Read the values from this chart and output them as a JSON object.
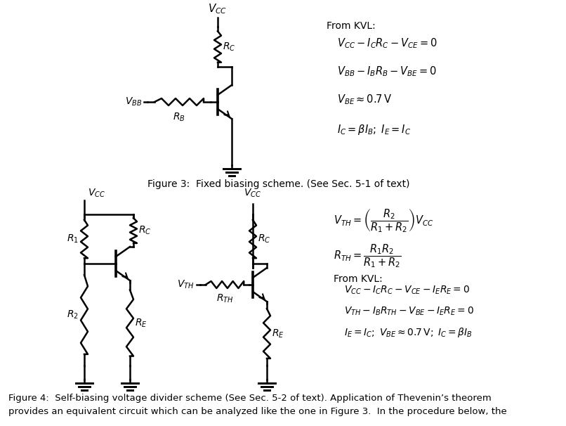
{
  "bg_color": "#ffffff",
  "text_color": "#000000",
  "fig_width": 8.06,
  "fig_height": 6.06,
  "fig3_caption": "Figure 3:  Fixed biasing scheme. (See Sec. 5-1 of text)",
  "fig4_caption": "Figure 4:  Self-biasing voltage divider scheme (See Sec. 5-2 of text). Application of Thevenin’s theorem\nprovides an equivalent circuit which can be analyzed like the one in Figure 3.  In the procedure below, the"
}
